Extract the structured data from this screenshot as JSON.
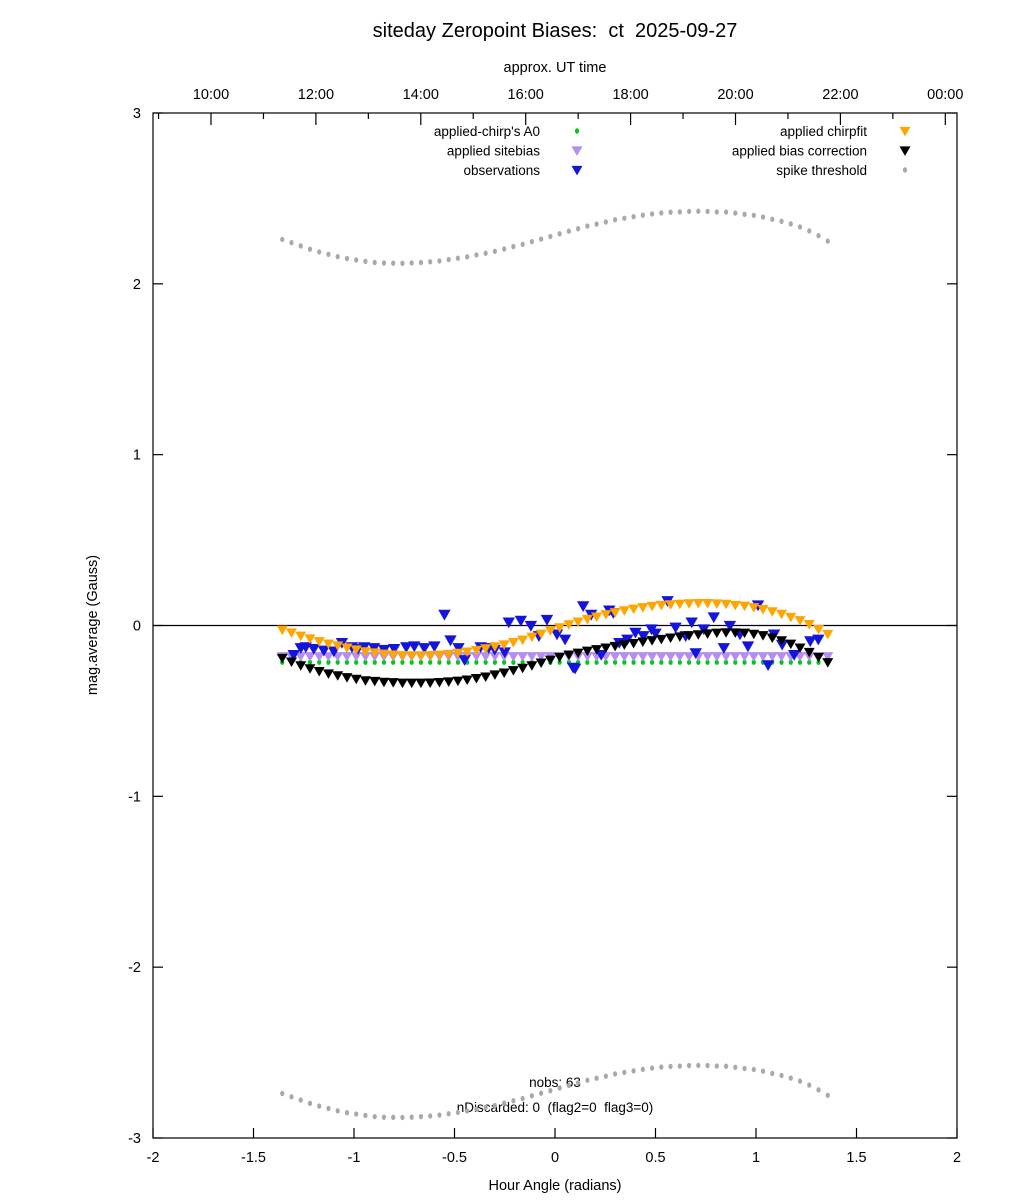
{
  "title": "siteday Zeropoint Biases:  ct  2025-09-27",
  "stats": {
    "line1": "nobs: 63",
    "line2": "nDiscarded: 0  (flag2=0  flag3=0)"
  },
  "legend": {
    "items": [
      {
        "label": "applied-chirp's A0",
        "marker": "dot",
        "color": "#00c818",
        "col": 0
      },
      {
        "label": "applied sitebias",
        "marker": "triangle_down",
        "color": "#b48ef0",
        "col": 0
      },
      {
        "label": "observations",
        "marker": "triangle_down",
        "color": "#1414dc",
        "col": 0
      },
      {
        "label": "applied chirpfit",
        "marker": "triangle_down",
        "color": "#ffa500",
        "col": 1
      },
      {
        "label": "applied bias correction",
        "marker": "triangle_down",
        "color": "#000000",
        "col": 1
      },
      {
        "label": "spike threshold",
        "marker": "dot",
        "color": "#a9a9a9",
        "col": 1
      }
    ]
  },
  "chart_data": {
    "type": "scatter",
    "title": "siteday Zeropoint Biases:  ct  2025-09-27",
    "xlabel": "Hour Angle (radians)",
    "x2label": "approx. UT time",
    "ylabel": "mag.average (Gauss)",
    "xlim": [
      -2,
      2
    ],
    "ylim": [
      -3,
      3
    ],
    "grid": false,
    "x_ticks": {
      "values": [
        -2,
        -1.5,
        -1,
        -0.5,
        0,
        0.5,
        1,
        1.5,
        2
      ],
      "labels": [
        "-2",
        "-1.5",
        "-1",
        "-0.5",
        "0",
        "0.5",
        "1",
        "1.5",
        "2"
      ]
    },
    "y_ticks": {
      "values": [
        -3,
        -2,
        -1,
        0,
        1,
        2,
        3
      ],
      "labels": [
        "-3",
        "-2",
        "-1",
        "0",
        "1",
        "2",
        "3"
      ]
    },
    "x2_ticks": {
      "major_hours": [
        10,
        12,
        14,
        16,
        18,
        20,
        22,
        24
      ],
      "major_labels": [
        "10:00",
        "12:00",
        "14:00",
        "16:00",
        "18:00",
        "20:00",
        "22:00",
        "00:00"
      ],
      "minor_hours": [
        9,
        11,
        13,
        15,
        17,
        19,
        21,
        23
      ]
    },
    "grid_x": [
      -1.357,
      -1.311,
      -1.265,
      -1.219,
      -1.173,
      -1.127,
      -1.081,
      -1.035,
      -0.989,
      -0.943,
      -0.897,
      -0.851,
      -0.805,
      -0.759,
      -0.713,
      -0.667,
      -0.621,
      -0.575,
      -0.529,
      -0.483,
      -0.437,
      -0.391,
      -0.345,
      -0.299,
      -0.253,
      -0.207,
      -0.161,
      -0.115,
      -0.069,
      -0.023,
      0.023,
      0.069,
      0.115,
      0.161,
      0.207,
      0.253,
      0.299,
      0.345,
      0.391,
      0.437,
      0.483,
      0.529,
      0.575,
      0.621,
      0.667,
      0.713,
      0.759,
      0.805,
      0.851,
      0.897,
      0.943,
      0.989,
      1.035,
      1.081,
      1.127,
      1.173,
      1.219,
      1.265,
      1.311,
      1.357
    ],
    "series": [
      {
        "id": "applied_chirps_a0",
        "name": "applied-chirp's A0",
        "marker": "dot",
        "color": "#00c818",
        "x": "grid",
        "constant": -0.215
      },
      {
        "id": "applied_sitebias",
        "name": "applied sitebias",
        "marker": "triangle_down",
        "color": "#b48ef0",
        "x": "grid",
        "constant": -0.18
      },
      {
        "id": "observations",
        "name": "observations",
        "marker": "triangle_down",
        "size": "large",
        "color": "#1414dc",
        "points": [
          [
            -1.3,
            -0.17
          ],
          [
            -1.265,
            -0.13
          ],
          [
            -1.24,
            -0.125
          ],
          [
            -1.2,
            -0.135
          ],
          [
            -1.15,
            -0.145
          ],
          [
            -1.1,
            -0.15
          ],
          [
            -1.06,
            -0.1
          ],
          [
            -1.01,
            -0.125
          ],
          [
            -0.98,
            -0.135
          ],
          [
            -0.95,
            -0.125
          ],
          [
            -0.9,
            -0.13
          ],
          [
            -0.85,
            -0.14
          ],
          [
            -0.8,
            -0.135
          ],
          [
            -0.74,
            -0.125
          ],
          [
            -0.7,
            -0.12
          ],
          [
            -0.65,
            -0.13
          ],
          [
            -0.6,
            -0.12
          ],
          [
            -0.55,
            0.065
          ],
          [
            -0.52,
            -0.085
          ],
          [
            -0.48,
            -0.13
          ],
          [
            -0.45,
            -0.2
          ],
          [
            -0.37,
            -0.125
          ],
          [
            -0.33,
            -0.13
          ],
          [
            -0.3,
            -0.14
          ],
          [
            -0.25,
            -0.155
          ],
          [
            -0.23,
            0.02
          ],
          [
            -0.17,
            0.03
          ],
          [
            -0.12,
            0.0
          ],
          [
            -0.08,
            -0.06
          ],
          [
            -0.04,
            0.035
          ],
          [
            0.01,
            -0.05
          ],
          [
            0.05,
            -0.08
          ],
          [
            0.09,
            -0.245
          ],
          [
            0.1,
            -0.25
          ],
          [
            0.14,
            0.115
          ],
          [
            0.18,
            0.065
          ],
          [
            0.23,
            -0.17
          ],
          [
            0.27,
            0.09
          ],
          [
            0.29,
            0.075
          ],
          [
            0.32,
            -0.1
          ],
          [
            0.36,
            -0.08
          ],
          [
            0.4,
            -0.04
          ],
          [
            0.44,
            -0.06
          ],
          [
            0.48,
            -0.02
          ],
          [
            0.5,
            -0.045
          ],
          [
            0.56,
            0.145
          ],
          [
            0.6,
            -0.01
          ],
          [
            0.65,
            -0.06
          ],
          [
            0.68,
            0.02
          ],
          [
            0.7,
            -0.16
          ],
          [
            0.74,
            -0.02
          ],
          [
            0.79,
            0.05
          ],
          [
            0.84,
            -0.13
          ],
          [
            0.87,
            0.0
          ],
          [
            0.92,
            -0.05
          ],
          [
            0.96,
            -0.12
          ],
          [
            1.01,
            0.12
          ],
          [
            1.06,
            -0.23
          ],
          [
            1.09,
            -0.05
          ],
          [
            1.13,
            -0.11
          ],
          [
            1.19,
            -0.17
          ],
          [
            1.27,
            -0.09
          ],
          [
            1.31,
            -0.08
          ]
        ]
      },
      {
        "id": "applied_chirpfit",
        "name": "applied chirpfit",
        "marker": "triangle_down",
        "color": "#ffa500",
        "x": "grid",
        "values": [
          -0.025,
          -0.041,
          -0.06,
          -0.076,
          -0.092,
          -0.106,
          -0.117,
          -0.129,
          -0.14,
          -0.151,
          -0.158,
          -0.165,
          -0.17,
          -0.174,
          -0.175,
          -0.175,
          -0.173,
          -0.171,
          -0.167,
          -0.16,
          -0.153,
          -0.143,
          -0.134,
          -0.122,
          -0.111,
          -0.097,
          -0.083,
          -0.066,
          -0.048,
          -0.029,
          -0.011,
          0.007,
          0.023,
          0.038,
          0.052,
          0.066,
          0.077,
          0.089,
          0.098,
          0.107,
          0.114,
          0.12,
          0.124,
          0.127,
          0.13,
          0.131,
          0.131,
          0.129,
          0.127,
          0.12,
          0.116,
          0.107,
          0.096,
          0.083,
          0.068,
          0.05,
          0.031,
          0.008,
          -0.021,
          -0.05
        ]
      },
      {
        "id": "applied_bias_correction",
        "name": "applied bias correction",
        "marker": "triangle_down",
        "color": "#000000",
        "x": "grid",
        "values": [
          -0.19,
          -0.211,
          -0.233,
          -0.251,
          -0.267,
          -0.281,
          -0.292,
          -0.303,
          -0.312,
          -0.321,
          -0.325,
          -0.33,
          -0.332,
          -0.335,
          -0.335,
          -0.335,
          -0.334,
          -0.331,
          -0.328,
          -0.323,
          -0.317,
          -0.308,
          -0.299,
          -0.287,
          -0.276,
          -0.262,
          -0.248,
          -0.233,
          -0.217,
          -0.2,
          -0.184,
          -0.17,
          -0.159,
          -0.148,
          -0.139,
          -0.129,
          -0.12,
          -0.111,
          -0.103,
          -0.094,
          -0.086,
          -0.079,
          -0.071,
          -0.064,
          -0.058,
          -0.052,
          -0.047,
          -0.042,
          -0.04,
          -0.041,
          -0.042,
          -0.049,
          -0.057,
          -0.071,
          -0.087,
          -0.107,
          -0.129,
          -0.155,
          -0.184,
          -0.215
        ]
      },
      {
        "id": "spike_threshold_upper",
        "name": "spike threshold",
        "marker": "dot",
        "color": "#a9a9a9",
        "x": "grid",
        "values": [
          2.26,
          2.241,
          2.222,
          2.203,
          2.187,
          2.173,
          2.159,
          2.148,
          2.14,
          2.132,
          2.125,
          2.122,
          2.121,
          2.12,
          2.122,
          2.125,
          2.129,
          2.134,
          2.142,
          2.15,
          2.158,
          2.169,
          2.179,
          2.19,
          2.204,
          2.218,
          2.231,
          2.247,
          2.262,
          2.277,
          2.293,
          2.308,
          2.323,
          2.338,
          2.35,
          2.362,
          2.375,
          2.384,
          2.393,
          2.402,
          2.409,
          2.415,
          2.419,
          2.421,
          2.424,
          2.425,
          2.424,
          2.421,
          2.42,
          2.414,
          2.407,
          2.401,
          2.391,
          2.378,
          2.366,
          2.351,
          2.333,
          2.31,
          2.282,
          2.25
        ]
      },
      {
        "id": "spike_threshold_lower",
        "name": "spike threshold",
        "marker": "dot",
        "color": "#a9a9a9",
        "x": "grid",
        "values": [
          -2.74,
          -2.759,
          -2.778,
          -2.797,
          -2.813,
          -2.827,
          -2.841,
          -2.852,
          -2.86,
          -2.868,
          -2.875,
          -2.878,
          -2.879,
          -2.88,
          -2.878,
          -2.875,
          -2.871,
          -2.866,
          -2.858,
          -2.85,
          -2.842,
          -2.831,
          -2.821,
          -2.81,
          -2.796,
          -2.782,
          -2.769,
          -2.753,
          -2.738,
          -2.723,
          -2.707,
          -2.692,
          -2.677,
          -2.662,
          -2.65,
          -2.638,
          -2.625,
          -2.616,
          -2.607,
          -2.598,
          -2.591,
          -2.585,
          -2.581,
          -2.579,
          -2.576,
          -2.575,
          -2.576,
          -2.579,
          -2.58,
          -2.586,
          -2.593,
          -2.599,
          -2.609,
          -2.622,
          -2.634,
          -2.649,
          -2.667,
          -2.69,
          -2.718,
          -2.75
        ]
      }
    ],
    "annotations": [
      "nobs: 63",
      "nDiscarded: 0  (flag2=0  flag3=0)"
    ],
    "legend_position": "top-inside-two-columns"
  }
}
